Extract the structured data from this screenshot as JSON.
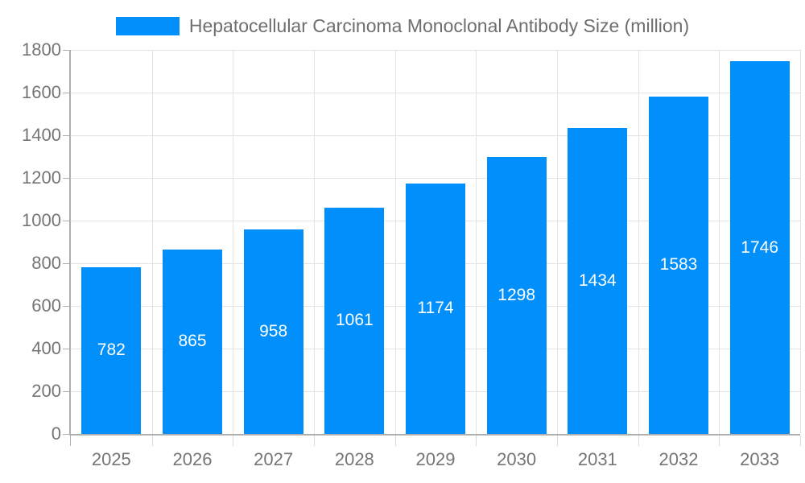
{
  "chart_data": {
    "type": "bar",
    "title": "Hepatocellular Carcinoma Monoclonal Antibody Size (million)",
    "categories": [
      "2025",
      "2026",
      "2027",
      "2028",
      "2029",
      "2030",
      "2031",
      "2032",
      "2033"
    ],
    "values": [
      782,
      865,
      958,
      1061,
      1174,
      1298,
      1434,
      1583,
      1746
    ],
    "xlabel": "",
    "ylabel": "",
    "ylim": [
      0,
      1800
    ],
    "yticks": [
      0,
      200,
      400,
      600,
      800,
      1000,
      1200,
      1400,
      1600,
      1800
    ],
    "grid": true,
    "legend_position": "top",
    "colors": {
      "bar": "#008FFB",
      "bar_label_text": "#FFFFFF",
      "legend_text": "#6E6E6E",
      "axis_text": "#757575",
      "gridline": "#E3E3E3",
      "axis_line": "#AFAFAF",
      "minor_tick": "#D9D9D9",
      "background": "#FFFFFF"
    }
  }
}
